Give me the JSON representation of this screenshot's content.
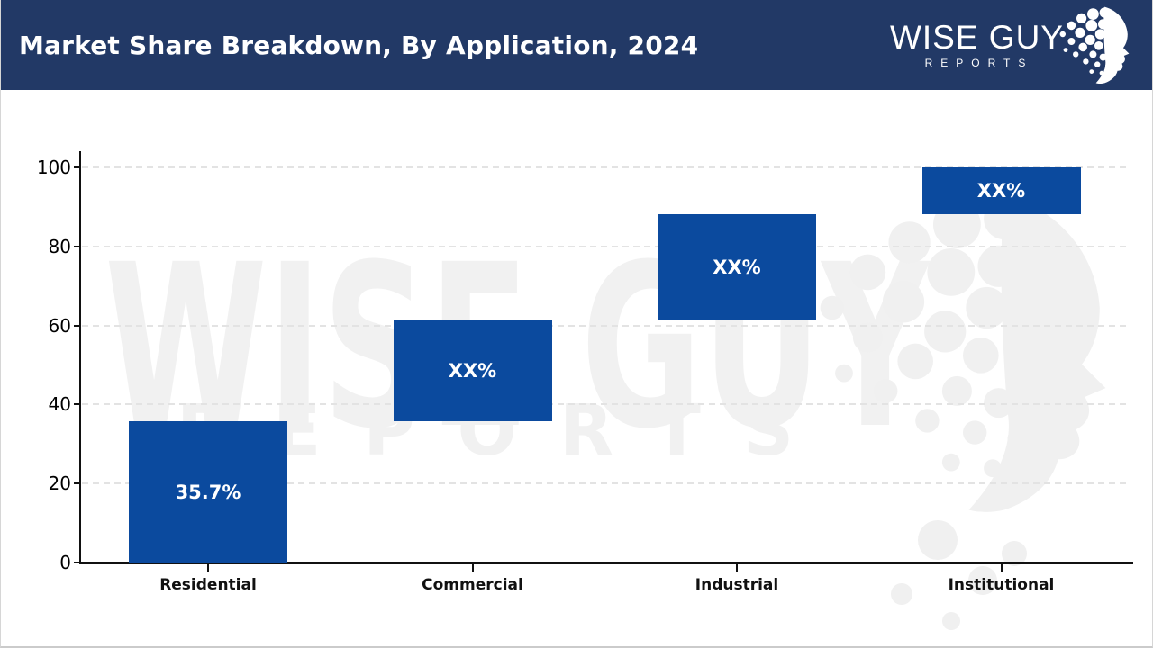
{
  "header": {
    "title": "Market Share Breakdown, By Application, 2024",
    "background_color": "#223966",
    "logo": {
      "line1": "WISE GUY",
      "line2": "REPORTS",
      "icon": "dotted-head-profile-icon"
    }
  },
  "watermark": {
    "line1": "WISE GUY",
    "line2": "REPORTS"
  },
  "chart_data": {
    "type": "bar",
    "subtype": "waterfall",
    "title": "Market Share Breakdown, By Application, 2024",
    "categories": [
      "Residential",
      "Commercial",
      "Industrial",
      "Institutional"
    ],
    "series": [
      {
        "name": "Market share (%)",
        "segments": [
          {
            "category": "Residential",
            "start": 0,
            "end": 35.7,
            "label": "35.7%"
          },
          {
            "category": "Commercial",
            "start": 35.7,
            "end": 61.4,
            "label": "XX%"
          },
          {
            "category": "Industrial",
            "start": 61.4,
            "end": 88.2,
            "label": "XX%"
          },
          {
            "category": "Institutional",
            "start": 88.2,
            "end": 100,
            "label": "XX%"
          }
        ]
      }
    ],
    "xlabel": "",
    "ylabel": "",
    "ylim": [
      0,
      100
    ],
    "yticks": [
      0,
      20,
      40,
      60,
      80,
      100
    ],
    "grid": "horizontal-dashed",
    "legend": "none",
    "bar_color": "#0b4a9e",
    "bar_label_color": "#ffffff",
    "axis_color": "#111111",
    "gridline_color": "#e3e3e3"
  }
}
